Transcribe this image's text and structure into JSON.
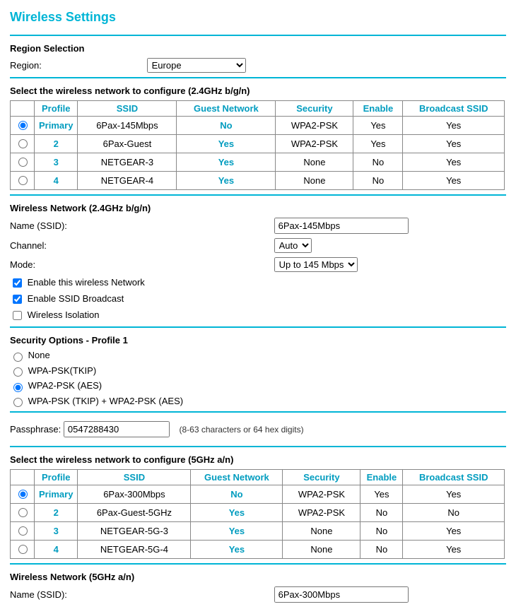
{
  "page_title": "Wireless Settings",
  "region_selection": {
    "heading": "Region Selection",
    "label": "Region:",
    "value": "Europe"
  },
  "table24": {
    "heading": "Select the wireless network to configure (2.4GHz b/g/n)",
    "headers": {
      "profile": "Profile",
      "ssid": "SSID",
      "guest": "Guest Network",
      "security": "Security",
      "enable": "Enable",
      "broadcast": "Broadcast SSID"
    },
    "rows": [
      {
        "profile": "Primary",
        "ssid": "6Pax-145Mbps",
        "guest": "No",
        "security": "WPA2-PSK",
        "enable": "Yes",
        "broadcast": "Yes",
        "selected": true
      },
      {
        "profile": "2",
        "ssid": "6Pax-Guest",
        "guest": "Yes",
        "security": "WPA2-PSK",
        "enable": "Yes",
        "broadcast": "Yes",
        "selected": false
      },
      {
        "profile": "3",
        "ssid": "NETGEAR-3",
        "guest": "Yes",
        "security": "None",
        "enable": "No",
        "broadcast": "Yes",
        "selected": false
      },
      {
        "profile": "4",
        "ssid": "NETGEAR-4",
        "guest": "Yes",
        "security": "None",
        "enable": "No",
        "broadcast": "Yes",
        "selected": false
      }
    ]
  },
  "net24": {
    "heading": "Wireless Network (2.4GHz b/g/n)",
    "name_label": "Name (SSID):",
    "name_value": "6Pax-145Mbps",
    "channel_label": "Channel:",
    "channel_value": "Auto",
    "mode_label": "Mode:",
    "mode_value": "Up to 145 Mbps",
    "cb_enable": "Enable this wireless Network",
    "cb_broadcast": "Enable SSID Broadcast",
    "cb_isolation": "Wireless Isolation"
  },
  "security": {
    "heading": "Security Options - Profile 1",
    "opt_none": "None",
    "opt_wpa_tkip": "WPA-PSK(TKIP)",
    "opt_wpa2_aes": "WPA2-PSK (AES)",
    "opt_mixed": "WPA-PSK (TKIP) + WPA2-PSK (AES)"
  },
  "passphrase": {
    "label": "Passphrase:",
    "value": "0547288430",
    "hint": "(8-63 characters or 64 hex digits)"
  },
  "table5": {
    "heading": "Select the wireless network to configure (5GHz a/n)",
    "headers": {
      "profile": "Profile",
      "ssid": "SSID",
      "guest": "Guest Network",
      "security": "Security",
      "enable": "Enable",
      "broadcast": "Broadcast SSID"
    },
    "rows": [
      {
        "profile": "Primary",
        "ssid": "6Pax-300Mbps",
        "guest": "No",
        "security": "WPA2-PSK",
        "enable": "Yes",
        "broadcast": "Yes",
        "selected": true
      },
      {
        "profile": "2",
        "ssid": "6Pax-Guest-5GHz",
        "guest": "Yes",
        "security": "WPA2-PSK",
        "enable": "No",
        "broadcast": "No",
        "selected": false
      },
      {
        "profile": "3",
        "ssid": "NETGEAR-5G-3",
        "guest": "Yes",
        "security": "None",
        "enable": "No",
        "broadcast": "Yes",
        "selected": false
      },
      {
        "profile": "4",
        "ssid": "NETGEAR-5G-4",
        "guest": "Yes",
        "security": "None",
        "enable": "No",
        "broadcast": "Yes",
        "selected": false
      }
    ]
  },
  "net5": {
    "heading": "Wireless Network (5GHz a/n)",
    "name_label": "Name (SSID):",
    "name_value": "6Pax-300Mbps"
  },
  "colors": {
    "accent": "#00b5d6",
    "link": "#009cbf"
  }
}
